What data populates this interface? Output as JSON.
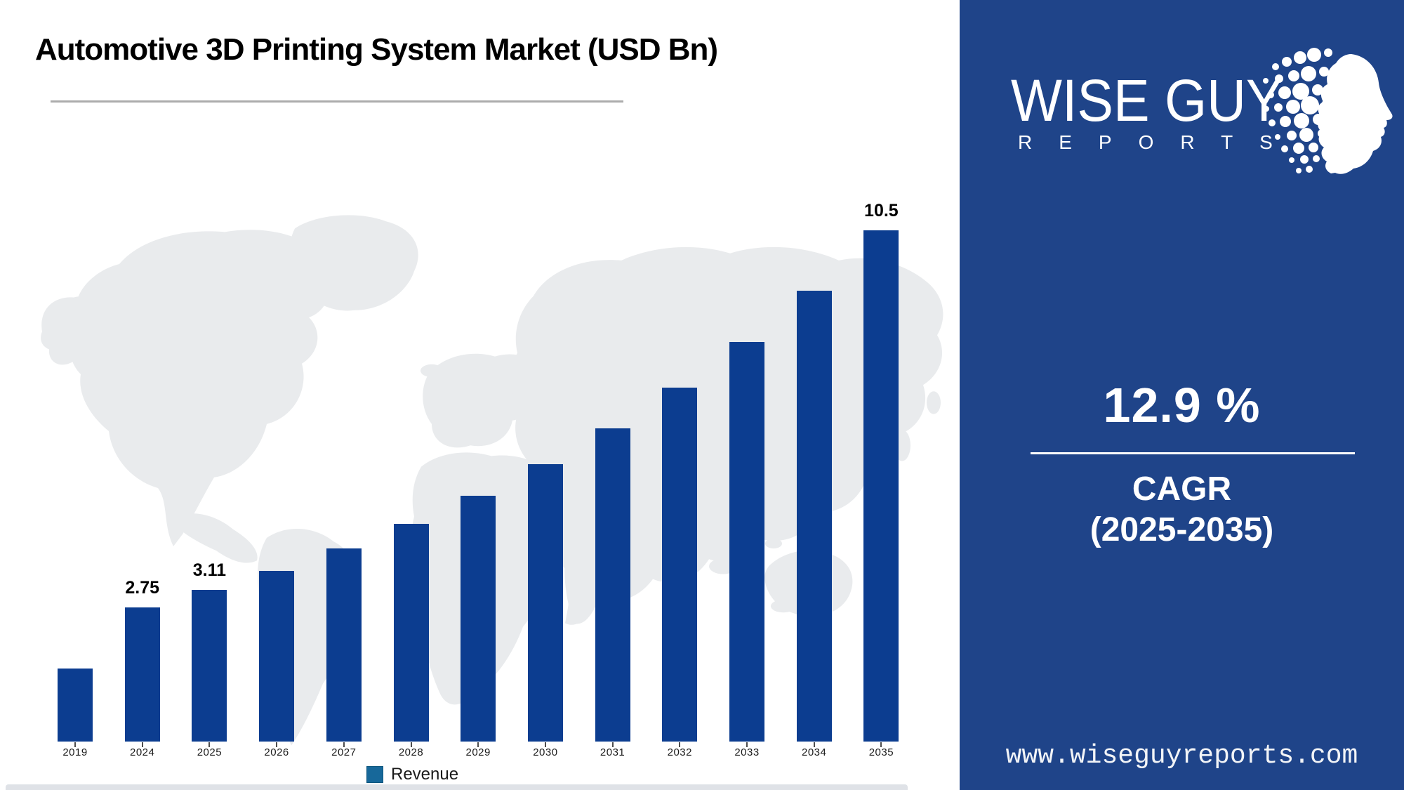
{
  "title": "Automotive 3D Printing System Market (USD Bn)",
  "legend": {
    "label": "Revenue",
    "swatch_color": "#17689a"
  },
  "chart_data": {
    "type": "bar",
    "title": "Automotive 3D Printing System Market (USD Bn)",
    "unit": "USD Bn",
    "categories": [
      "2019",
      "2024",
      "2025",
      "2026",
      "2027",
      "2028",
      "2029",
      "2030",
      "2031",
      "2032",
      "2033",
      "2034",
      "2035"
    ],
    "values": [
      1.5,
      2.75,
      3.11,
      3.51,
      3.96,
      4.47,
      5.05,
      5.7,
      6.44,
      7.27,
      8.2,
      9.26,
      10.5
    ],
    "data_labels": [
      "",
      "2.75",
      "3.11",
      "",
      "",
      "",
      "",
      "",
      "",
      "",
      "",
      "",
      "10.5"
    ],
    "bar_color": "#0c3d90",
    "ylim": [
      0,
      11.5
    ],
    "grid": false,
    "legend_entries": [
      "Revenue"
    ],
    "legend_position": "bottom",
    "xlabel": "",
    "ylabel": ""
  },
  "brand_panel": {
    "background_color": "#1f4489",
    "logo_line1": "WISE GUY",
    "logo_line2": "REPORTS",
    "cagr_value": "12.9 %",
    "cagr_label_line1": "CAGR",
    "cagr_label_line2": "(2025-2035)",
    "website": "www.wiseguyreports.com"
  }
}
